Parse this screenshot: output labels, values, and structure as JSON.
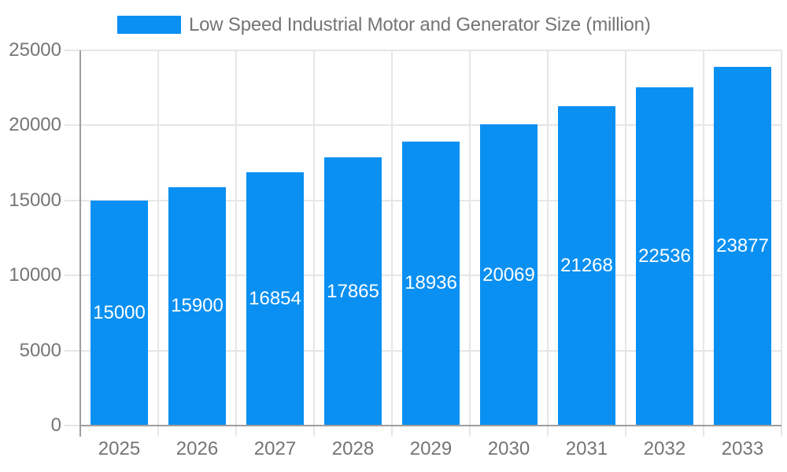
{
  "legend": {
    "label": "Low Speed Industrial Motor and Generator Size (million)"
  },
  "chart_data": {
    "type": "bar",
    "title": "Low Speed Industrial Motor and Generator Size (million)",
    "categories": [
      "2025",
      "2026",
      "2027",
      "2028",
      "2029",
      "2030",
      "2031",
      "2032",
      "2033"
    ],
    "values": [
      15000,
      15900,
      16854,
      17865,
      18936,
      20069,
      21268,
      22536,
      23877
    ],
    "value_labels": [
      "15000",
      "15900",
      "16854",
      "17865",
      "18936",
      "20069",
      "21268",
      "22536",
      "23877"
    ],
    "xlabel": "",
    "ylabel": "",
    "ylim": [
      0,
      25000
    ],
    "yticks": [
      0,
      5000,
      10000,
      15000,
      20000,
      25000
    ],
    "grid": true,
    "legend_position": "top",
    "bar_color": "#0a90f2",
    "value_label_color": "#ffffff",
    "axis_text_color": "#757575",
    "axis_line_color": "#9e9e9e",
    "gridline_color": "#e6e6e6"
  }
}
